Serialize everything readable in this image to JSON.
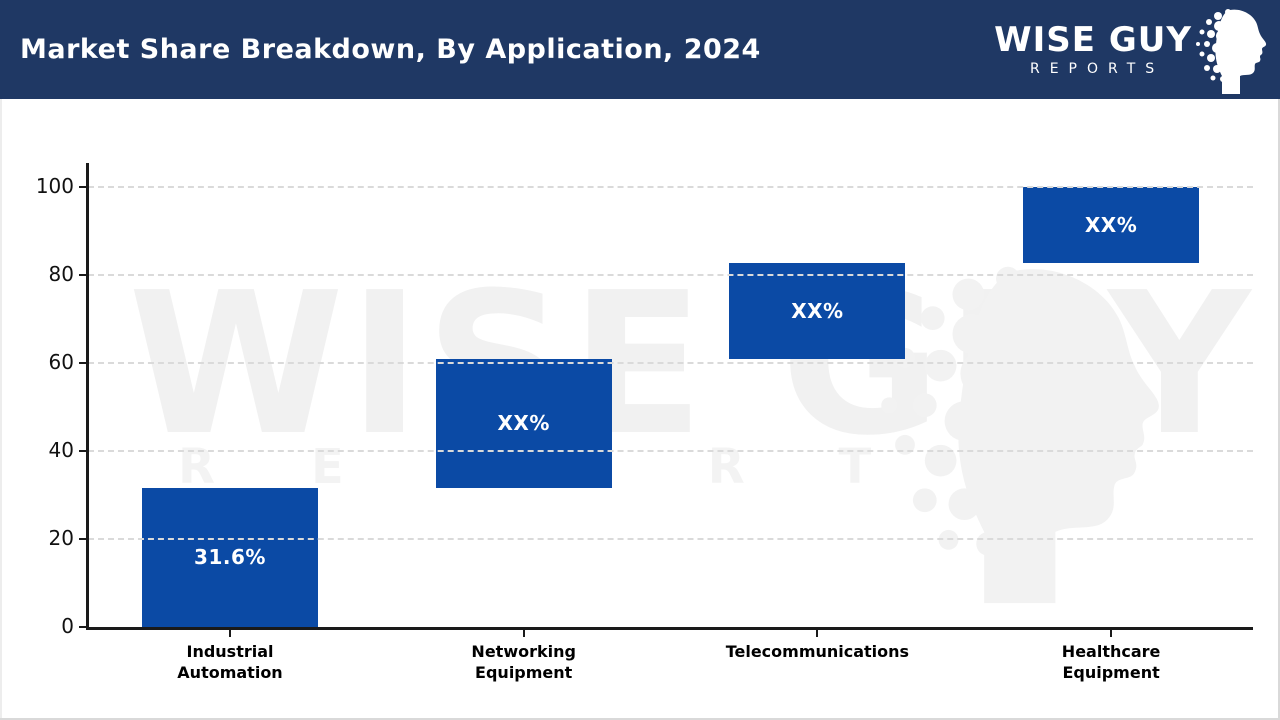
{
  "header": {
    "title": "Market Share Breakdown, By Application, 2024",
    "bg_color": "#1f3864",
    "logo": {
      "name": "WISE GUY",
      "subtext": "REPORTS",
      "head_icon": "wiseguy-head-icon"
    }
  },
  "watermark": {
    "line1": "WISE GUY",
    "line2": "REPORTS",
    "head_icon": "watermark-head-icon"
  },
  "chart_data": {
    "type": "bar",
    "subtype": "floating-waterfall",
    "title": "Market Share Breakdown, By Application, 2024",
    "categories": [
      "Industrial\nAutomation",
      "Networking\nEquipment",
      "Telecommunications",
      "Healthcare\nEquipment"
    ],
    "segments": [
      {
        "category": "Industrial Automation",
        "start": 0,
        "end": 31.6,
        "label": "31.6%"
      },
      {
        "category": "Networking Equipment",
        "start": 31.6,
        "end": 61.0,
        "label": "XX%"
      },
      {
        "category": "Telecommunications",
        "start": 61.0,
        "end": 82.8,
        "label": "XX%"
      },
      {
        "category": "Healthcare Equipment",
        "start": 82.8,
        "end": 100,
        "label": "XX%"
      }
    ],
    "yticks": [
      0,
      20,
      40,
      60,
      80,
      100
    ],
    "ylim": [
      0,
      105
    ],
    "xlabel": "",
    "ylabel": "",
    "bar_color": "#0b4aa5",
    "grid": "horizontal-dashed",
    "legend": "none"
  }
}
